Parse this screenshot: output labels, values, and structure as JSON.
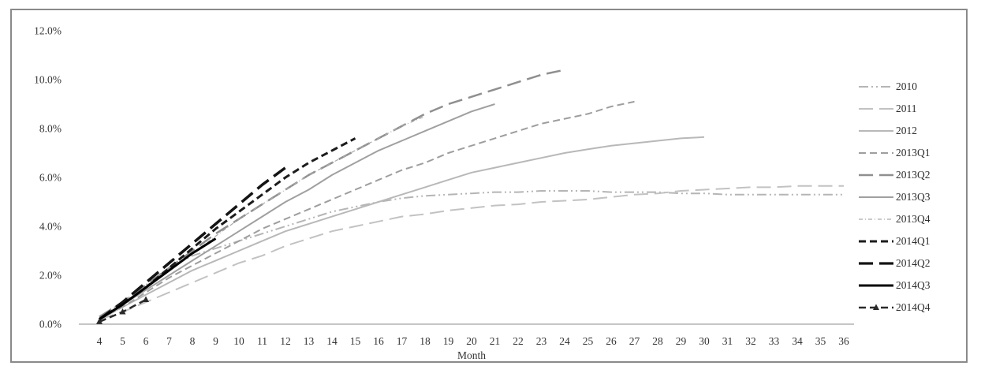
{
  "figure": {
    "background": "#ffffff",
    "border_color": "#8a8a8a",
    "axis_color": "#b3b3b3",
    "text_color": "#333333"
  },
  "chart_data": {
    "type": "line",
    "title": "",
    "xlabel": "Month",
    "ylabel": "",
    "xlim": [
      4,
      36
    ],
    "ylim": [
      0,
      12
    ],
    "grid": false,
    "legend_position": "right",
    "x_ticks": [
      4,
      5,
      6,
      7,
      8,
      9,
      10,
      11,
      12,
      13,
      14,
      15,
      16,
      17,
      18,
      19,
      20,
      21,
      22,
      23,
      24,
      25,
      26,
      27,
      28,
      29,
      30,
      31,
      32,
      33,
      34,
      35,
      36
    ],
    "y_ticks": [
      {
        "value": 0,
        "label": "0.0%"
      },
      {
        "value": 2,
        "label": "2.0%"
      },
      {
        "value": 4,
        "label": "4.0%"
      },
      {
        "value": 6,
        "label": "6.0%"
      },
      {
        "value": 8,
        "label": "8.0%"
      },
      {
        "value": 10,
        "label": "10.0%"
      },
      {
        "value": 12,
        "label": "12.0%"
      }
    ],
    "series": [
      {
        "name": "2010",
        "color": "#b5b5b5",
        "width": 2,
        "dash": "dashdotdot",
        "x": [
          4,
          5,
          6,
          7,
          8,
          9,
          10,
          11,
          12,
          13,
          14,
          15,
          16,
          17,
          18,
          19,
          20,
          21,
          22,
          23,
          24,
          25,
          26,
          27,
          28,
          29,
          30,
          31,
          32,
          33,
          34,
          35,
          36
        ],
        "y": [
          0.3,
          0.9,
          1.6,
          2.3,
          2.8,
          3.1,
          3.4,
          3.7,
          4.0,
          4.3,
          4.6,
          4.8,
          5.0,
          5.15,
          5.25,
          5.3,
          5.35,
          5.4,
          5.4,
          5.45,
          5.45,
          5.45,
          5.4,
          5.4,
          5.4,
          5.35,
          5.35,
          5.3,
          5.3,
          5.3,
          5.3,
          5.3,
          5.3
        ]
      },
      {
        "name": "2011",
        "color": "#c2c2c2",
        "width": 2,
        "dash": "longdash",
        "x": [
          4,
          5,
          6,
          7,
          8,
          9,
          10,
          11,
          12,
          13,
          14,
          15,
          16,
          17,
          18,
          19,
          20,
          21,
          22,
          23,
          24,
          25,
          26,
          27,
          28,
          29,
          30,
          31,
          32,
          33,
          34,
          35,
          36
        ],
        "y": [
          0.2,
          0.5,
          0.9,
          1.3,
          1.7,
          2.1,
          2.5,
          2.8,
          3.2,
          3.5,
          3.8,
          4.0,
          4.2,
          4.4,
          4.5,
          4.65,
          4.75,
          4.85,
          4.9,
          5.0,
          5.05,
          5.1,
          5.2,
          5.3,
          5.35,
          5.45,
          5.5,
          5.55,
          5.6,
          5.6,
          5.65,
          5.65,
          5.65
        ]
      },
      {
        "name": "2012",
        "color": "#b8b8b8",
        "width": 2,
        "dash": "solid",
        "x": [
          4,
          5,
          6,
          7,
          8,
          9,
          10,
          11,
          12,
          13,
          14,
          15,
          16,
          17,
          18,
          19,
          20,
          21,
          22,
          23,
          24,
          25,
          26,
          27,
          28,
          29,
          30
        ],
        "y": [
          0.2,
          0.7,
          1.2,
          1.7,
          2.2,
          2.6,
          3.0,
          3.4,
          3.8,
          4.1,
          4.4,
          4.7,
          5.0,
          5.3,
          5.6,
          5.9,
          6.2,
          6.4,
          6.6,
          6.8,
          7.0,
          7.15,
          7.3,
          7.4,
          7.5,
          7.6,
          7.65
        ]
      },
      {
        "name": "2013Q1",
        "color": "#9e9e9e",
        "width": 2,
        "dash": "dash",
        "x": [
          4,
          5,
          6,
          7,
          8,
          9,
          10,
          11,
          12,
          13,
          14,
          15,
          16,
          17,
          18,
          19,
          20,
          21,
          22,
          23,
          24,
          25,
          26,
          27
        ],
        "y": [
          0.2,
          0.7,
          1.3,
          1.9,
          2.4,
          2.9,
          3.4,
          3.9,
          4.3,
          4.7,
          5.1,
          5.5,
          5.9,
          6.3,
          6.6,
          7.0,
          7.3,
          7.6,
          7.9,
          8.2,
          8.4,
          8.6,
          8.9,
          9.1
        ]
      },
      {
        "name": "2013Q2",
        "color": "#8f8f8f",
        "width": 2.5,
        "dash": "longdash",
        "x": [
          4,
          5,
          6,
          7,
          8,
          9,
          10,
          11,
          12,
          13,
          14,
          15,
          16,
          17,
          18,
          19,
          20,
          21,
          22,
          23,
          24
        ],
        "y": [
          0.3,
          0.9,
          1.6,
          2.3,
          3.0,
          3.7,
          4.3,
          4.9,
          5.5,
          6.1,
          6.6,
          7.1,
          7.6,
          8.1,
          8.6,
          9.0,
          9.3,
          9.6,
          9.9,
          10.2,
          10.4
        ]
      },
      {
        "name": "2013Q3",
        "color": "#a0a0a0",
        "width": 2,
        "dash": "solid",
        "x": [
          4,
          5,
          6,
          7,
          8,
          9,
          10,
          11,
          12,
          13,
          14,
          15,
          16,
          17,
          18,
          19,
          20,
          21
        ],
        "y": [
          0.2,
          0.8,
          1.4,
          2.0,
          2.6,
          3.2,
          3.8,
          4.4,
          5.0,
          5.5,
          6.1,
          6.6,
          7.1,
          7.5,
          7.9,
          8.3,
          8.7,
          9.0
        ]
      },
      {
        "name": "2013Q4",
        "color": "#ababab",
        "width": 1.2,
        "dash": "findashdot",
        "x": [
          4,
          5,
          6,
          7,
          8,
          9,
          10,
          11,
          12,
          13,
          14,
          15,
          16,
          17,
          18
        ],
        "y": [
          0.2,
          0.8,
          1.5,
          2.2,
          2.9,
          3.6,
          4.3,
          4.9,
          5.5,
          6.1,
          6.6,
          7.1,
          7.6,
          8.1,
          8.5
        ]
      },
      {
        "name": "2014Q1",
        "color": "#1c1c1c",
        "width": 3,
        "dash": "dash",
        "x": [
          4,
          5,
          6,
          7,
          8,
          9,
          10,
          11,
          12,
          13,
          14,
          15
        ],
        "y": [
          0.2,
          0.8,
          1.5,
          2.3,
          3.1,
          3.9,
          4.6,
          5.3,
          6.0,
          6.6,
          7.1,
          7.6
        ]
      },
      {
        "name": "2014Q2",
        "color": "#141414",
        "width": 3.5,
        "dash": "longdash",
        "x": [
          4,
          5,
          6,
          7,
          8,
          9,
          10,
          11,
          12
        ],
        "y": [
          0.2,
          0.9,
          1.7,
          2.5,
          3.3,
          4.1,
          4.9,
          5.7,
          6.4
        ]
      },
      {
        "name": "2014Q3",
        "color": "#000000",
        "width": 3,
        "dash": "solid",
        "x": [
          4,
          5,
          6,
          7,
          8,
          9
        ],
        "y": [
          0.2,
          0.8,
          1.5,
          2.2,
          2.9,
          3.5
        ]
      },
      {
        "name": "2014Q4",
        "color": "#2a2a2a",
        "width": 2.5,
        "dash": "dash",
        "marker": "triangle-up",
        "x": [
          4,
          5,
          6
        ],
        "y": [
          0.1,
          0.5,
          1.0
        ]
      }
    ]
  }
}
